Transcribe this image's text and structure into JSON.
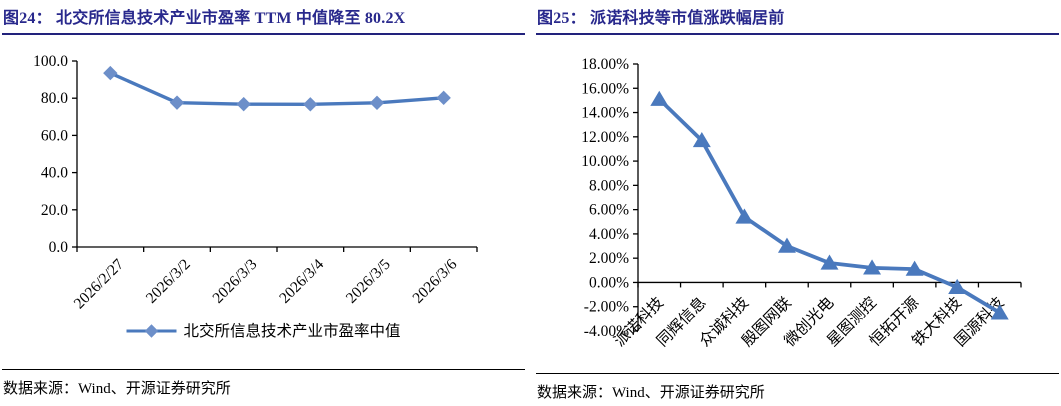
{
  "page": {
    "background": "#ffffff",
    "title_color": "#28288c",
    "axis_color": "#000000"
  },
  "figures": [
    {
      "id": "figure-24",
      "title": "图24：  北交所信息技术产业市盈率 TTM 中值降至 80.2X",
      "source": "数据来源：Wind、开源证券研究所"
    },
    {
      "id": "figure-25",
      "title": "图25：  派诺科技等市值涨跌幅居前",
      "source": "数据来源：Wind、开源证券研究所"
    }
  ],
  "chart_data": [
    {
      "type": "line",
      "title": "北交所信息技术产业市盈率TTM中值降至80.2X",
      "categories": [
        "2026/2/27",
        "2026/3/2",
        "2026/3/3",
        "2026/3/4",
        "2026/3/5",
        "2026/3/6"
      ],
      "series": [
        {
          "name": "北交所信息技术产业市盈率中值",
          "values": [
            93.5,
            77.6,
            76.8,
            76.7,
            77.5,
            80.2
          ]
        }
      ],
      "legend_label": "北交所信息技术产业市盈率中值",
      "legend_position": "bottom",
      "xlabel": "",
      "ylabel": "",
      "ylim": [
        0,
        100
      ],
      "ytick_values": [
        0,
        20,
        40,
        60,
        80,
        100
      ],
      "ytick_labels": [
        "0.0",
        "20.0",
        "40.0",
        "60.0",
        "80.0",
        "100.0"
      ],
      "x_axis_at": 0,
      "grid": false,
      "marker": "diamond",
      "line_color": "#4a79bd",
      "marker_color": "#6d8fc9",
      "label_rotation": -45
    },
    {
      "type": "line",
      "title": "派诺科技等市值涨跌幅居前",
      "categories": [
        "派诺科技",
        "同辉信息",
        "众诚科技",
        "殷图网联",
        "微创光电",
        "星图测控",
        "恒拓开源",
        "铁大科技",
        "国源科技"
      ],
      "series": [
        {
          "name": "市值涨跌幅",
          "values": [
            15.1,
            11.7,
            5.4,
            3.0,
            1.6,
            1.2,
            1.1,
            -0.4,
            -2.5
          ]
        }
      ],
      "legend_label": "",
      "legend_position": "none",
      "xlabel": "",
      "ylabel": "",
      "unit": "%",
      "ylim": [
        -4,
        18
      ],
      "ytick_values": [
        -4,
        -2,
        0,
        2,
        4,
        6,
        8,
        10,
        12,
        14,
        16,
        18
      ],
      "ytick_labels": [
        "-4.00%",
        "-2.00%",
        "0.00%",
        "2.00%",
        "4.00%",
        "6.00%",
        "8.00%",
        "10.00%",
        "12.00%",
        "14.00%",
        "16.00%",
        "18.00%"
      ],
      "x_axis_at": 0,
      "grid": false,
      "marker": "triangle",
      "line_color": "#4a79bd",
      "marker_color": "#4a79bd",
      "label_rotation": -45
    }
  ]
}
